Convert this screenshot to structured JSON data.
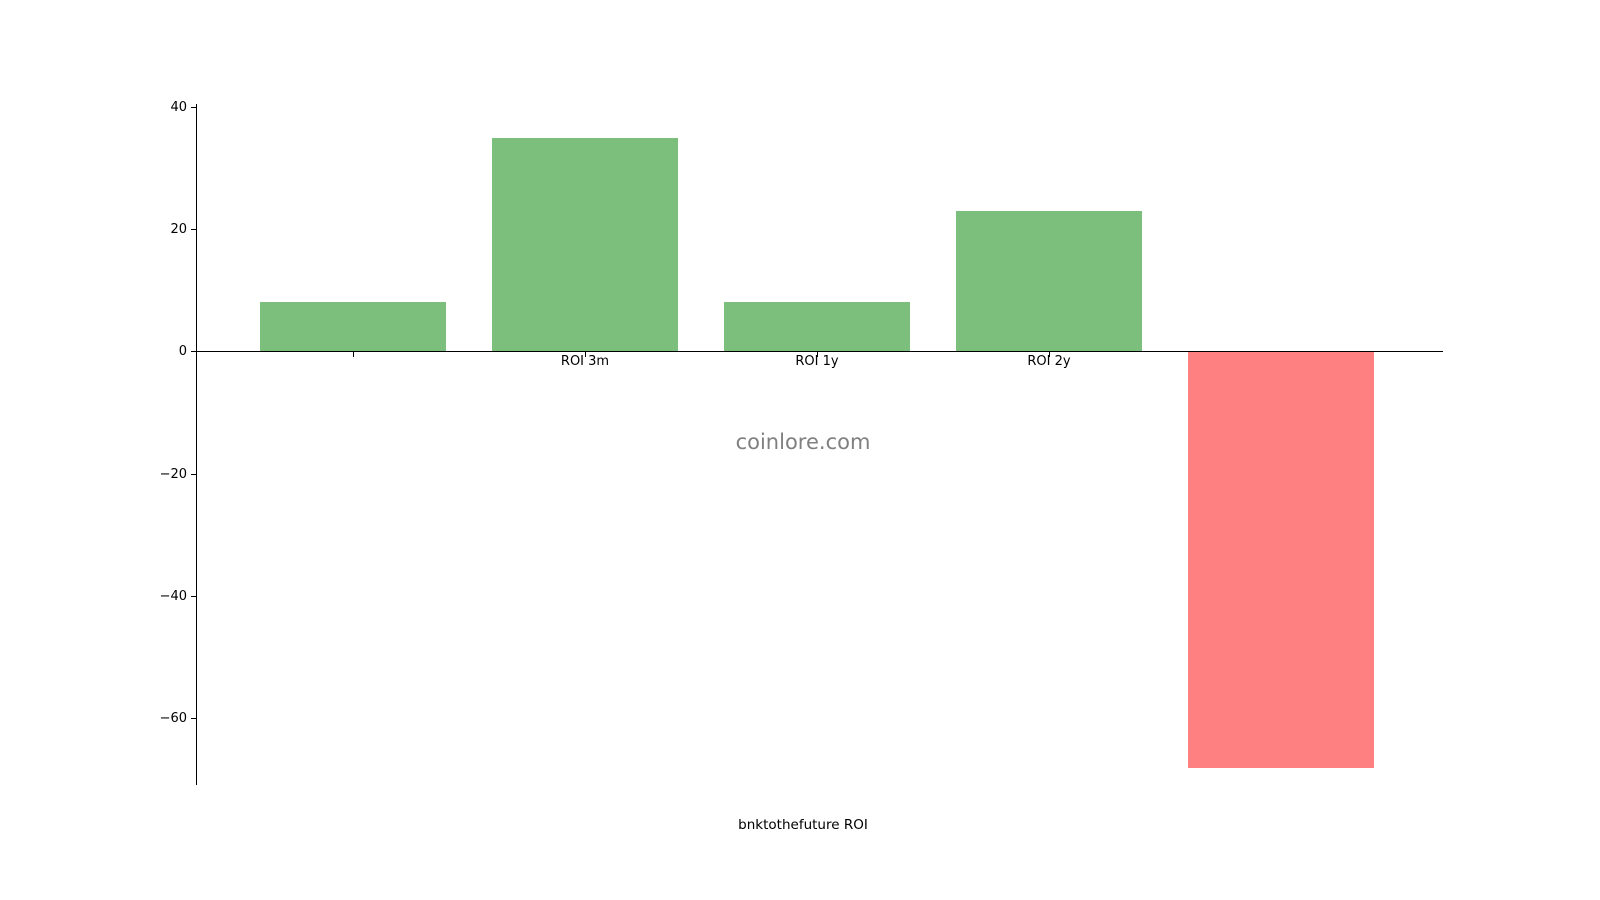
{
  "figure": {
    "background": "#ffffff",
    "watermark": "coinlore.com",
    "watermark_color": "#808080"
  },
  "chart_data": {
    "type": "bar",
    "title": "",
    "xlabel": "bnktothefuture ROI",
    "ylabel": "",
    "categories": [
      "",
      "ROI 3m",
      "ROI 1y",
      "ROI 2y",
      ""
    ],
    "values": [
      8,
      35,
      8,
      23,
      -68
    ],
    "positive_color": "#7cbe7c",
    "negative_color": "#ff8080",
    "axis_color": "#000000",
    "tick_label_color": "#000000",
    "yticks": [
      40,
      20,
      0,
      -20,
      -40,
      -60
    ],
    "ylim": [
      -71,
      40.5
    ],
    "grid": false,
    "legend": null,
    "notes": "first and last category tick labels are not visible; last tick is covered by the negative bar"
  }
}
